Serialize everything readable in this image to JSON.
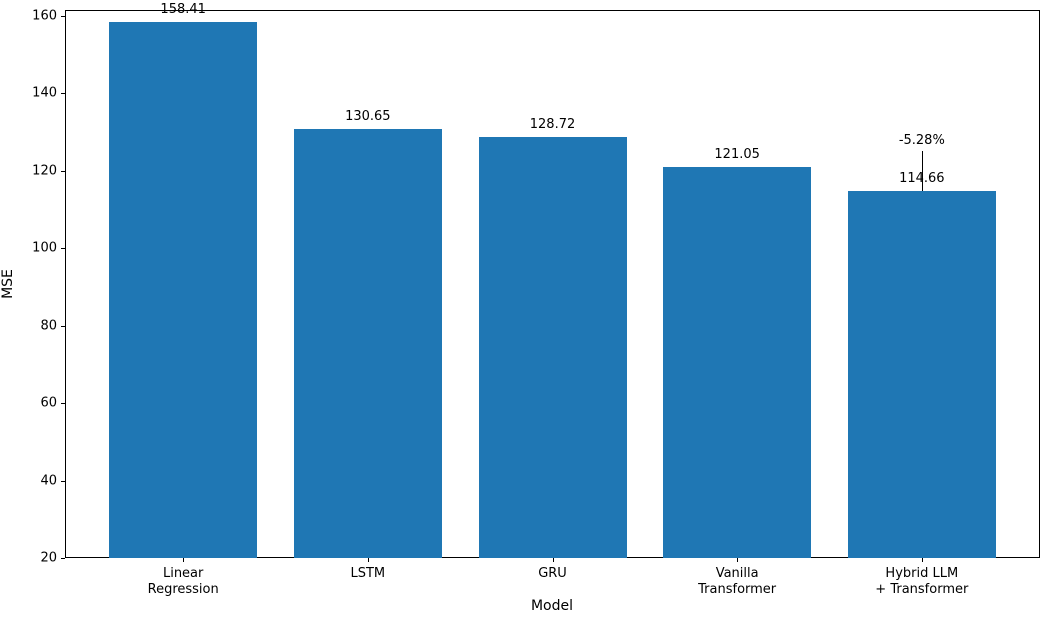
{
  "chart_data": {
    "type": "bar",
    "title": "",
    "xlabel": "Model",
    "ylabel": "MSE",
    "categories": [
      "Linear\nRegression",
      "LSTM",
      "GRU",
      "Vanilla\nTransformer",
      "Hybrid LLM\n+ Transformer"
    ],
    "values": [
      158.41,
      130.65,
      128.72,
      121.05,
      114.66
    ],
    "value_labels": [
      "158.41",
      "130.65",
      "128.72",
      "121.05",
      "114.66"
    ],
    "bar_color": "#1f77b4",
    "ylim": [
      20,
      161.5
    ],
    "yticks": [
      20,
      40,
      60,
      80,
      100,
      120,
      140,
      160
    ],
    "grid": false,
    "legend": null,
    "annotation": {
      "text": "-5.28%",
      "bar_index": 4
    }
  }
}
